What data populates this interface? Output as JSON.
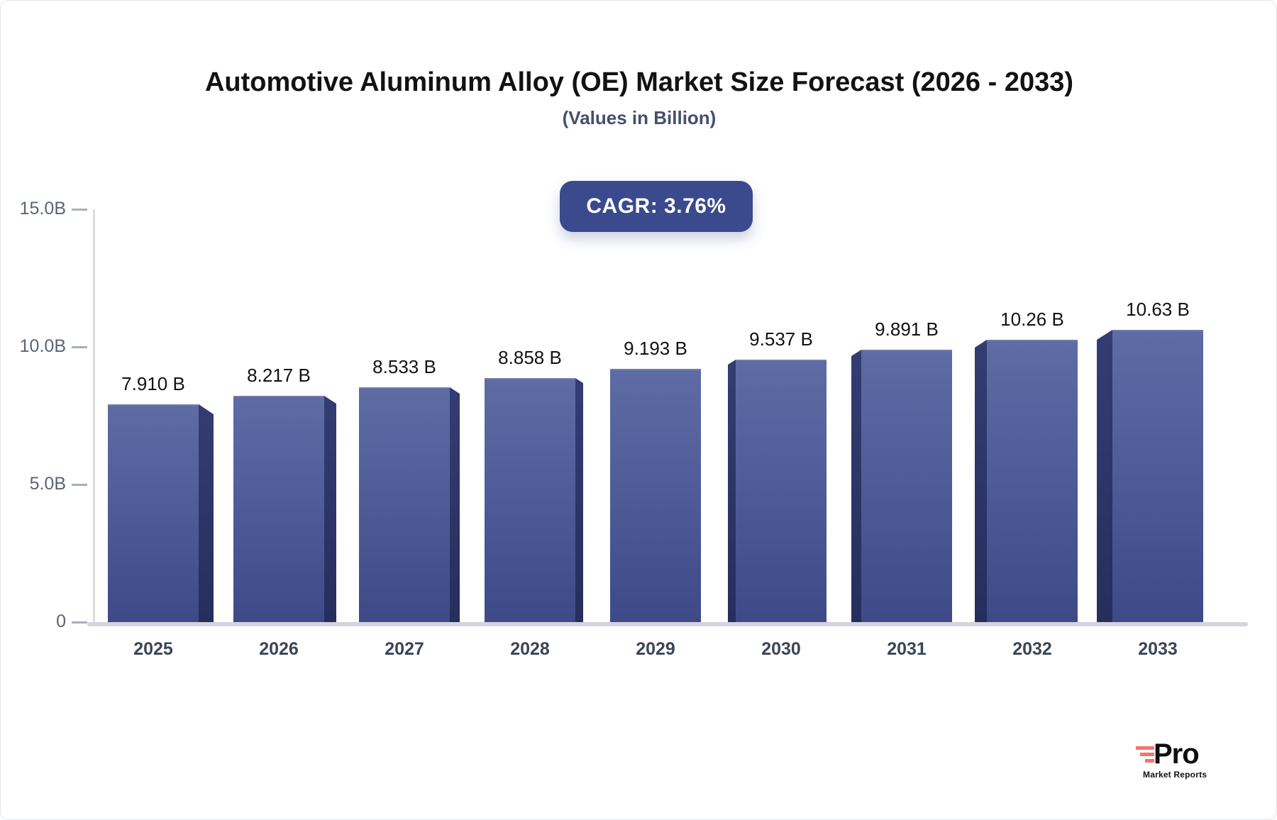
{
  "header": {
    "title": "Automotive Aluminum Alloy (OE) Market Size Forecast (2026 - 2033)",
    "subtitle": "(Values in Billion)",
    "cagr_badge": "CAGR: 3.76%"
  },
  "chart_data": {
    "type": "bar",
    "title": "Automotive Aluminum Alloy (OE) Market Size Forecast (2026 - 2033)",
    "subtitle": "(Values in Billion)",
    "unit": "Billion",
    "cagr": "3.76%",
    "categories": [
      "2025",
      "2026",
      "2027",
      "2028",
      "2029",
      "2030",
      "2031",
      "2032",
      "2033"
    ],
    "values": [
      7.91,
      8.217,
      8.533,
      8.858,
      9.193,
      9.537,
      9.891,
      10.26,
      10.63
    ],
    "value_labels": [
      "7.910 B",
      "8.217 B",
      "8.533 B",
      "8.858 B",
      "9.193 B",
      "9.537 B",
      "9.891 B",
      "10.26 B",
      "10.63 B"
    ],
    "y_axis": {
      "range": [
        0,
        15
      ],
      "ticks": [
        {
          "value": 15,
          "label": "15.0B"
        },
        {
          "value": 10,
          "label": "10.0B"
        },
        {
          "value": 5,
          "label": "5.0B"
        },
        {
          "value": 0,
          "label": "0"
        }
      ]
    },
    "grid": false,
    "legend": false,
    "colors": {
      "bar_top": "#5e6ca5",
      "bar_bottom": "#3e4a88",
      "bar_side_top": "#333d73",
      "bar_side_bottom": "#262e5c",
      "badge_bg": "#3a4a8c",
      "axis_gray": "#d2d5db"
    }
  },
  "branding": {
    "logo_title": "Pro",
    "logo_subtitle": "Market Reports",
    "accent": "#f5756c"
  }
}
